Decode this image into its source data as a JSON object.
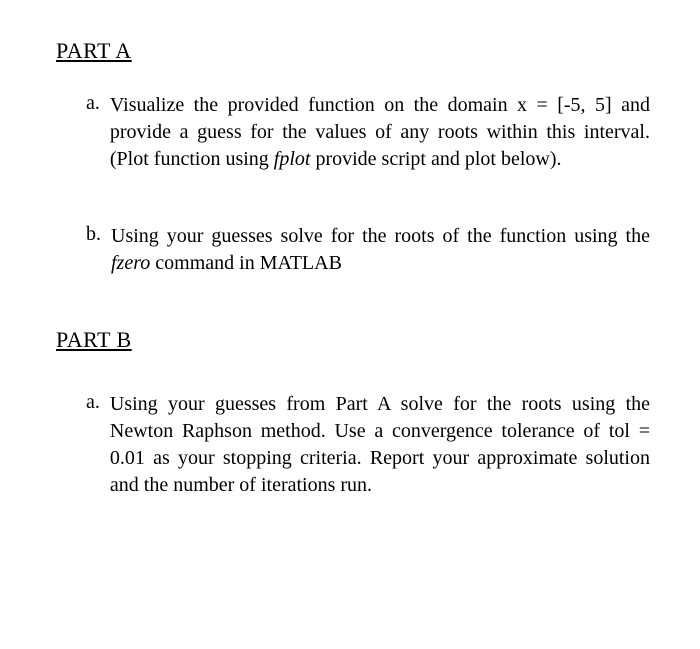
{
  "partA": {
    "heading": "PART A",
    "items": [
      {
        "marker": "a.",
        "segments": [
          {
            "text": "Visualize the provided function on the domain x = [-5, 5] and provide a guess for the values of any roots within this interval. (Plot function using ",
            "italic": false
          },
          {
            "text": "fplot",
            "italic": true
          },
          {
            "text": " provide script and plot below).",
            "italic": false
          }
        ]
      },
      {
        "marker": "b.",
        "segments": [
          {
            "text": "Using your guesses solve for the roots of the function using the ",
            "italic": false
          },
          {
            "text": "fzero",
            "italic": true
          },
          {
            "text": " command in MATLAB",
            "italic": false
          }
        ]
      }
    ]
  },
  "partB": {
    "heading": "PART B",
    "items": [
      {
        "marker": "a.",
        "segments": [
          {
            "text": "Using your guesses from Part A solve for the roots using the Newton Raphson method. Use a convergence tolerance of tol = 0.01 as your stopping criteria. Report your approximate solution and the number of iterations run.",
            "italic": false
          }
        ]
      }
    ]
  },
  "typography": {
    "heading_fontsize": 22,
    "body_fontsize": 20,
    "font_family": "Times New Roman",
    "text_color": "#000000",
    "background_color": "#ffffff"
  }
}
